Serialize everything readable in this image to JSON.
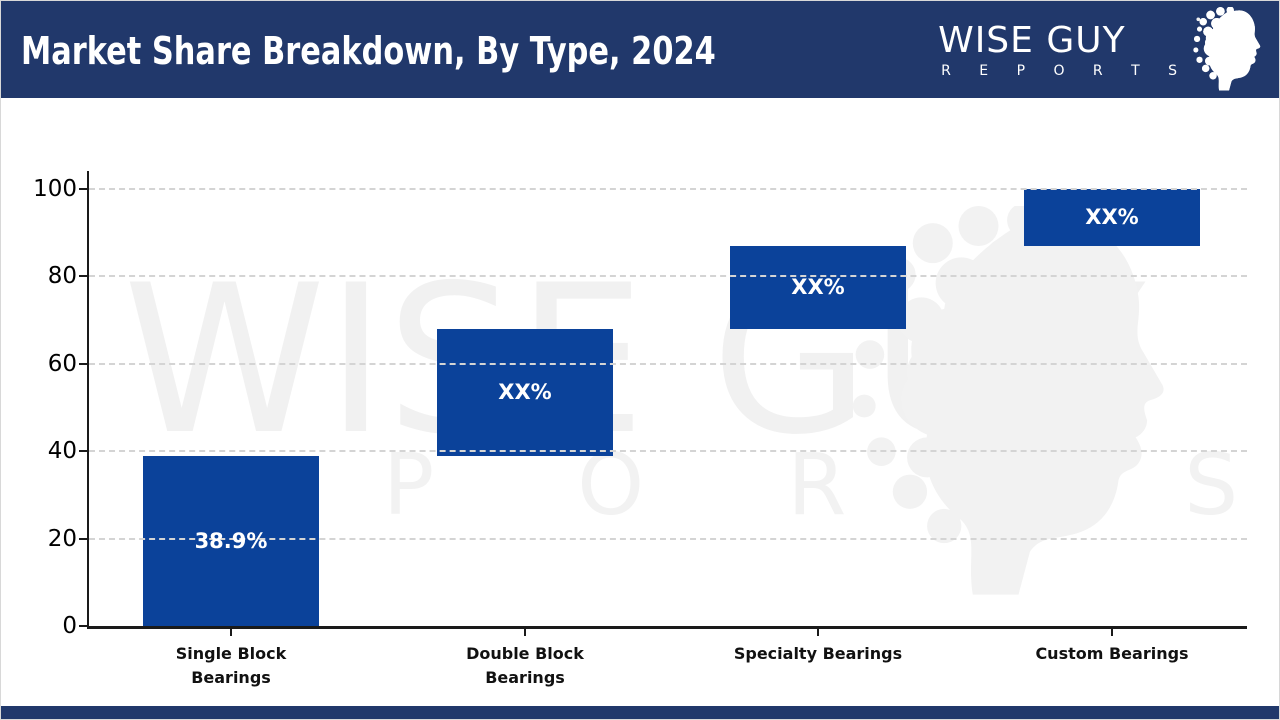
{
  "header": {
    "title": "Market Share Breakdown, By Type, 2024",
    "logo": {
      "line1": "WISE GUY",
      "line2": "R E P O R T S"
    }
  },
  "watermark": {
    "big_text": "WISE GUY",
    "sub_text": "P O R T S"
  },
  "chart_data": {
    "type": "bar",
    "subtype": "floating-waterfall-stacked-share",
    "title": "Market Share Breakdown, By Type, 2024",
    "categories": [
      "Single Block Bearings",
      "Double Block Bearings",
      "Specialty Bearings",
      "Custom Bearings"
    ],
    "category_lines": [
      [
        "Single Block",
        "Bearings"
      ],
      [
        "Double Block",
        "Bearings"
      ],
      [
        "Specialty Bearings"
      ],
      [
        "Custom Bearings"
      ]
    ],
    "segments": [
      {
        "category": "Single Block Bearings",
        "start": 0,
        "end": 38.9,
        "label": "38.9%"
      },
      {
        "category": "Double Block Bearings",
        "start": 38.9,
        "end": 68,
        "label": "XX%"
      },
      {
        "category": "Specialty Bearings",
        "start": 68,
        "end": 87,
        "label": "XX%"
      },
      {
        "category": "Custom Bearings",
        "start": 87,
        "end": 100,
        "label": "XX%"
      }
    ],
    "yticks": [
      0,
      20,
      40,
      60,
      80,
      100
    ],
    "ylim": [
      0,
      100
    ],
    "grid": "dashed-horizontal",
    "legend": null,
    "colors": {
      "bar": "#0B429A",
      "header_navy": "#21386B",
      "grid": "#d4d4d4",
      "axis": "#1a1a1a",
      "watermark": "#f1f1f1",
      "title_text": "#ffffff"
    }
  }
}
